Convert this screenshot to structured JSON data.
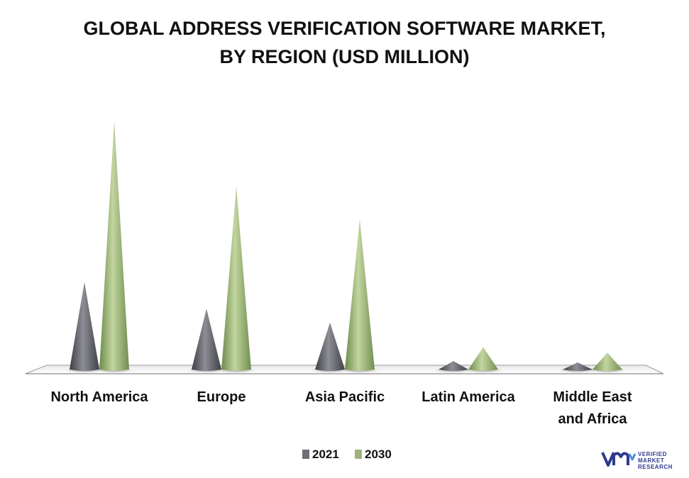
{
  "title_line1": "GLOBAL ADDRESS VERIFICATION SOFTWARE MARKET,",
  "title_line2": "BY REGION (USD MILLION)",
  "logo": {
    "line1": "VERIFIED",
    "line2": "MARKET",
    "line3": "RESEARCH",
    "mark": "vmr-logo-icon"
  },
  "colors": {
    "series_2021": "#6e6e76",
    "series_2030": "#9cb27a"
  },
  "chart_data": {
    "type": "bar",
    "style": "3d-cone",
    "title": "GLOBAL ADDRESS VERIFICATION SOFTWARE MARKET, BY REGION (USD MILLION)",
    "categories": [
      [
        "North America"
      ],
      [
        "Europe"
      ],
      [
        "Asia Pacific"
      ],
      [
        "Latin America"
      ],
      [
        "Middle East",
        "and Africa"
      ]
    ],
    "series": [
      {
        "name": "2021",
        "values": [
          125,
          87,
          67,
          12,
          10
        ]
      },
      {
        "name": "2030",
        "values": [
          355,
          262,
          215,
          32,
          24
        ]
      }
    ],
    "ylim": [
      0,
      360
    ],
    "grid": false,
    "legend": "bottom-center"
  }
}
